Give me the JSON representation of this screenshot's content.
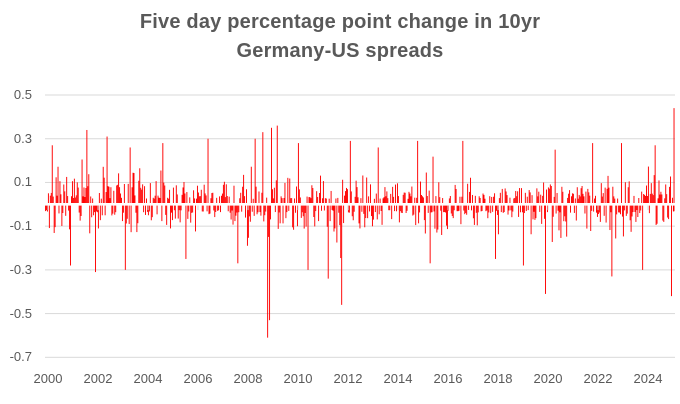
{
  "title": {
    "text": "Five day percentage point change in 10yr Germany-US spreads",
    "lines": [
      "Five day percentage point change in 10yr",
      "Germany-US spreads"
    ]
  },
  "chart_data": {
    "type": "bar",
    "title": "Five day percentage point change in 10yr Germany-US spreads",
    "xlabel": "",
    "ylabel": "",
    "series_name": "Five-day percentage point change in 10yr Germany-US spread",
    "x_range": [
      1999.9,
      2025.1
    ],
    "ylim": [
      -0.7,
      0.5
    ],
    "yticks": [
      0.5,
      0.3,
      0.1,
      -0.1,
      -0.3,
      -0.5,
      -0.7
    ],
    "ytick_labels": [
      "0.5",
      "0.3",
      "0.1",
      "-0.1",
      "-0.3",
      "-0.5",
      "-0.7"
    ],
    "xticks": [
      2000,
      2002,
      2004,
      2006,
      2008,
      2010,
      2012,
      2014,
      2016,
      2018,
      2020,
      2022,
      2024
    ],
    "grid": "horizontal",
    "legend": "none",
    "bar_color": "#FF0000",
    "zero_line_color": "#FFFFFF",
    "gridline_color": "#D9D9D9",
    "tick_mark_color": "#D9D9D9",
    "text_color": "#595959",
    "background": "#FFFFFF",
    "sampling": "approximately weekly observations, values oscillate around 0",
    "typical_weekly_amplitude_by_year": {
      "2000": 0.12,
      "2001": 0.13,
      "2002": 0.13,
      "2003": 0.12,
      "2004": 0.1,
      "2005": 0.09,
      "2006": 0.08,
      "2007": 0.1,
      "2008": 0.15,
      "2009": 0.15,
      "2010": 0.12,
      "2011": 0.13,
      "2012": 0.12,
      "2013": 0.1,
      "2014": 0.09,
      "2015": 0.11,
      "2016": 0.11,
      "2017": 0.09,
      "2018": 0.08,
      "2019": 0.1,
      "2020": 0.11,
      "2021": 0.09,
      "2022": 0.12,
      "2023": 0.11,
      "2024": 0.12,
      "2025": 0.14
    },
    "notable_extremes": [
      {
        "x": 2000.15,
        "value": 0.27
      },
      {
        "x": 2000.9,
        "value": -0.28
      },
      {
        "x": 2001.55,
        "value": 0.34
      },
      {
        "x": 2001.9,
        "value": -0.31
      },
      {
        "x": 2002.35,
        "value": 0.31
      },
      {
        "x": 2003.1,
        "value": -0.3
      },
      {
        "x": 2003.3,
        "value": 0.26
      },
      {
        "x": 2004.6,
        "value": 0.28
      },
      {
        "x": 2005.5,
        "value": -0.25
      },
      {
        "x": 2006.4,
        "value": 0.3
      },
      {
        "x": 2007.6,
        "value": -0.27
      },
      {
        "x": 2008.3,
        "value": 0.3
      },
      {
        "x": 2008.6,
        "value": 0.33
      },
      {
        "x": 2008.77,
        "value": -0.61
      },
      {
        "x": 2008.85,
        "value": -0.53
      },
      {
        "x": 2008.95,
        "value": 0.35
      },
      {
        "x": 2009.15,
        "value": 0.36
      },
      {
        "x": 2010.0,
        "value": 0.28
      },
      {
        "x": 2010.4,
        "value": -0.3
      },
      {
        "x": 2011.2,
        "value": -0.34
      },
      {
        "x": 2011.75,
        "value": -0.46
      },
      {
        "x": 2012.1,
        "value": 0.29
      },
      {
        "x": 2013.2,
        "value": 0.26
      },
      {
        "x": 2014.8,
        "value": 0.29
      },
      {
        "x": 2015.3,
        "value": -0.27
      },
      {
        "x": 2016.6,
        "value": 0.29
      },
      {
        "x": 2017.9,
        "value": -0.25
      },
      {
        "x": 2019.0,
        "value": -0.28
      },
      {
        "x": 2019.9,
        "value": -0.41
      },
      {
        "x": 2020.3,
        "value": 0.25
      },
      {
        "x": 2021.8,
        "value": 0.28
      },
      {
        "x": 2022.55,
        "value": -0.33
      },
      {
        "x": 2022.95,
        "value": 0.28
      },
      {
        "x": 2023.8,
        "value": -0.3
      },
      {
        "x": 2024.3,
        "value": 0.27
      },
      {
        "x": 2024.95,
        "value": -0.42
      },
      {
        "x": 2025.05,
        "value": 0.44
      }
    ]
  }
}
